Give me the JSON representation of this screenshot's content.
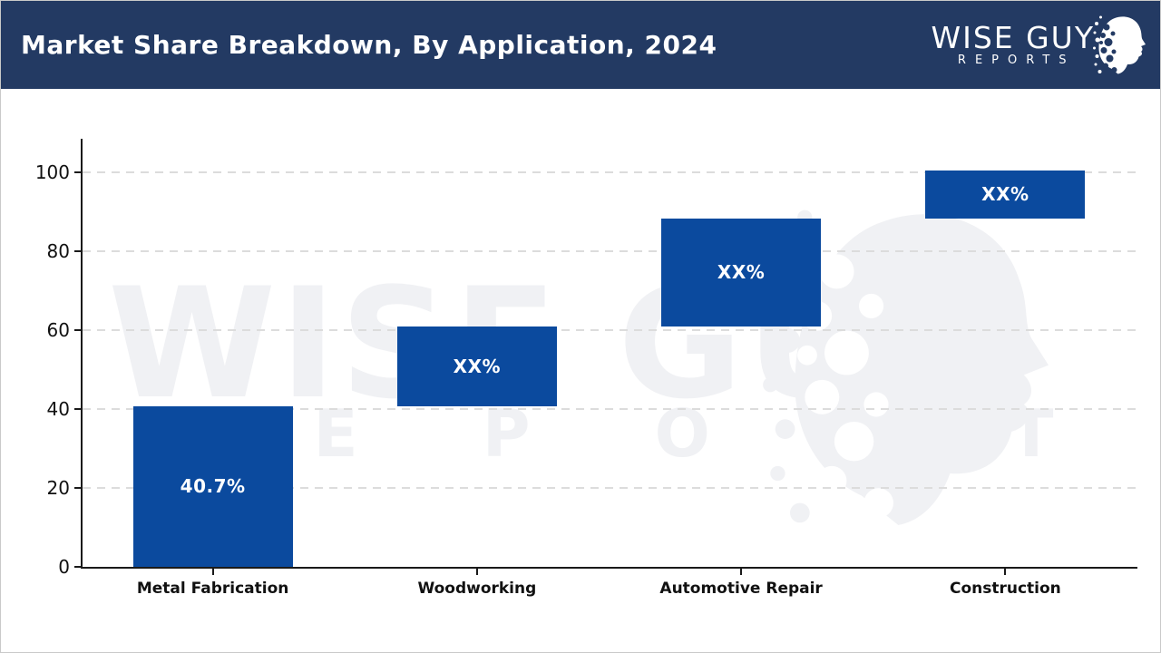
{
  "header": {
    "title": "Market Share Breakdown, By Application, 2024",
    "bg_color": "#233a63",
    "logo": {
      "line1": "WISE GUY",
      "line2": "REPORTS"
    }
  },
  "watermark": {
    "line1": "WISE GUY",
    "line2": "R E P O R T S"
  },
  "chart_data": {
    "type": "bar",
    "subtype": "floating-waterfall",
    "title": "Market Share Breakdown, By Application, 2024",
    "categories": [
      "Metal Fabrication",
      "Woodworking",
      "Automotive Repair",
      "Construction"
    ],
    "series": [
      {
        "name": "Market Share (%)",
        "segments": [
          {
            "category": "Metal Fabrication",
            "start": 0,
            "end": 40.7,
            "label": "40.7%"
          },
          {
            "category": "Woodworking",
            "start": 40.7,
            "end": 61.0,
            "label": "XX%"
          },
          {
            "category": "Automotive Repair",
            "start": 61.0,
            "end": 88.3,
            "label": "XX%"
          },
          {
            "category": "Construction",
            "start": 88.3,
            "end": 100.5,
            "label": "XX%"
          }
        ]
      }
    ],
    "yticks": [
      0,
      20,
      40,
      60,
      80,
      100
    ],
    "ylim": [
      0,
      107
    ],
    "xlabel": "",
    "ylabel": "",
    "grid": "horizontal-dashed",
    "legend": "none",
    "bar_color": "#0b4a9e",
    "bar_label_color": "#ffffff",
    "axis_color": "#1a1a1a",
    "grid_color": "#dcdcdc"
  }
}
